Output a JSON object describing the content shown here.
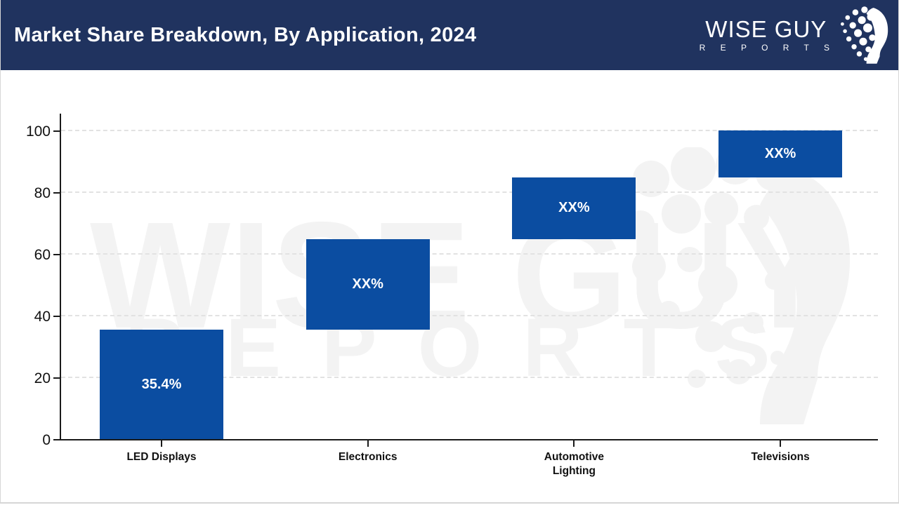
{
  "header": {
    "title": "Market Share Breakdown, By Application, 2024",
    "bg_color": "#20335f",
    "logo": {
      "line1": "WISE GUY",
      "line2": "R E P O R T S",
      "head_icon": "dotted-head-profile-icon"
    }
  },
  "watermark": {
    "line1": "WISE GUY",
    "line2": "REPORTS",
    "head_icon": "dotted-head-profile-watermark"
  },
  "colors": {
    "header_bg": "#20335f",
    "bar_blue": "#0b4da1",
    "bar_label_white": "#ffffff",
    "axis_black": "#1a1a1a",
    "gridline_gray": "#e2e2e2",
    "watermark_gray": "#f3f3f3"
  },
  "chart_data": {
    "type": "bar",
    "subtype": "floating-waterfall",
    "title": "Market Share Breakdown, By Application, 2024",
    "xlabel": "",
    "ylabel": "",
    "categories": [
      "LED Displays",
      "Electronics",
      "Automotive Lighting",
      "Televisions"
    ],
    "segments": [
      {
        "category": "LED Displays",
        "from": 0,
        "to": 35.4,
        "label": "35.4%"
      },
      {
        "category": "Electronics",
        "from": 35.4,
        "to": 64.8,
        "label": "XX%"
      },
      {
        "category": "Automotive Lighting",
        "from": 64.8,
        "to": 84.8,
        "label": "XX%"
      },
      {
        "category": "Televisions",
        "from": 84.8,
        "to": 100,
        "label": "XX%"
      }
    ],
    "y_ticks": [
      0,
      20,
      40,
      60,
      80,
      100
    ],
    "ylim": [
      0,
      105
    ],
    "grid": "dashed-horizontal",
    "legend": "none",
    "bar_color": "#0b4da1",
    "bar_label_color": "#ffffff"
  }
}
